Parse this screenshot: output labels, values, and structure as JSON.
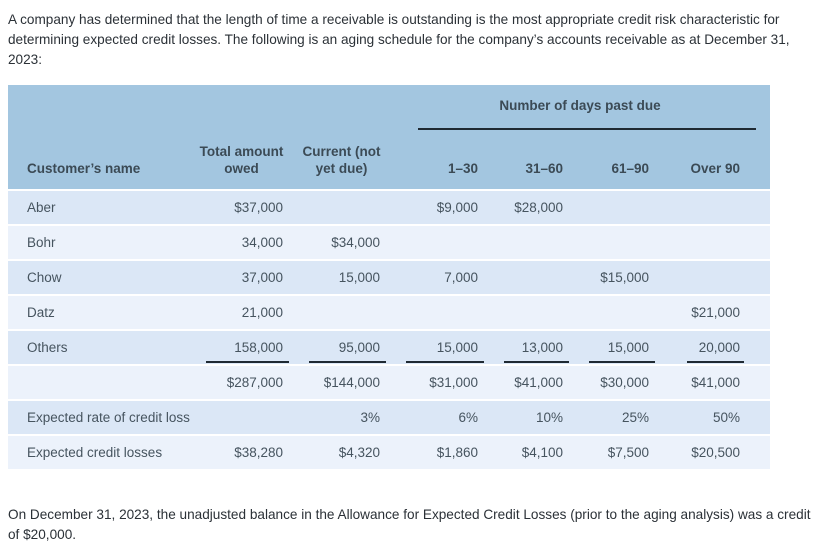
{
  "intro_text": "A company has determined that the length of time a receivable is outstanding is the most appropriate credit risk characteristic for determining expected credit losses. The following is an aging schedule for the company’s accounts receivable as at December 31, 2023:",
  "outro_text": "On December 31, 2023, the unadjusted balance in the Allowance for Expected Credit Losses (prior to the aging analysis) was a credit of $20,000.",
  "table": {
    "days_past_due_title": "Number of days past due",
    "columns": [
      "Customer’s name",
      "Total amount owed",
      "Current (not yet due)",
      "1–30",
      "31–60",
      "61–90",
      "Over 90"
    ],
    "rows": [
      {
        "label": "Aber",
        "cells": [
          "$37,000",
          "",
          "$9,000",
          "$28,000",
          "",
          ""
        ]
      },
      {
        "label": "Bohr",
        "cells": [
          "34,000",
          "$34,000",
          "",
          "",
          "",
          ""
        ]
      },
      {
        "label": "Chow",
        "cells": [
          "37,000",
          "15,000",
          "7,000",
          "",
          "$15,000",
          ""
        ]
      },
      {
        "label": "Datz",
        "cells": [
          "21,000",
          "",
          "",
          "",
          "",
          "$21,000"
        ]
      },
      {
        "label": "Others",
        "cells": [
          "158,000",
          "95,000",
          "15,000",
          "13,000",
          "15,000",
          "20,000"
        ],
        "rule": true
      },
      {
        "label": "",
        "cells": [
          "$287,000",
          "$144,000",
          "$31,000",
          "$41,000",
          "$30,000",
          "$41,000"
        ]
      },
      {
        "label": "Expected rate of credit loss",
        "cells": [
          "",
          "3%",
          "6%",
          "10%",
          "25%",
          "50%"
        ]
      },
      {
        "label": "Expected credit losses",
        "cells": [
          "$38,280",
          "$4,320",
          "$1,860",
          "$4,100",
          "$7,500",
          "$20,500"
        ]
      }
    ]
  },
  "colors": {
    "header_bg": "#a3c6e0",
    "row_stripe_dark": "#dbe7f6",
    "row_stripe_light": "#ecf2fb",
    "rule_line": "#1f2a33",
    "table_text": "#46545f",
    "body_text": "#2b3137"
  }
}
